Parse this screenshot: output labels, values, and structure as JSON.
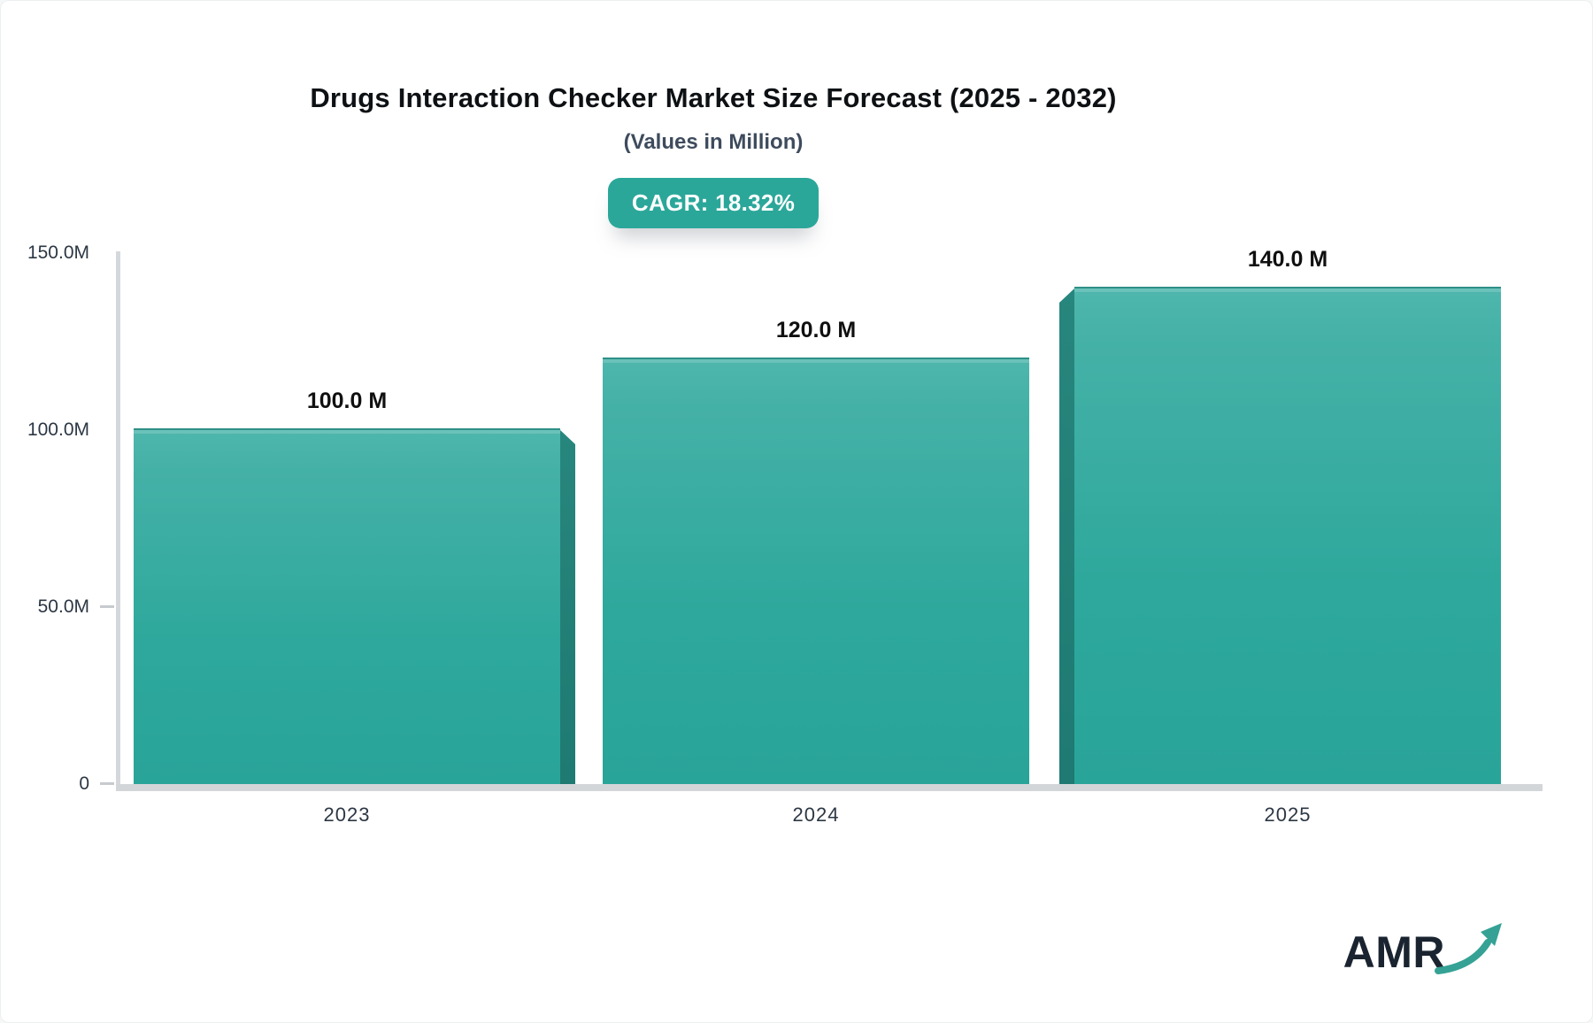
{
  "header": {
    "title": "Drugs Interaction Checker Market Size Forecast (2025 - 2032)",
    "subtitle": "(Values in Million)",
    "cagr_label": "CAGR: 18.32%"
  },
  "chart_data": {
    "type": "bar",
    "title": "Drugs Interaction Checker Market Size Forecast (2025 - 2032)",
    "subtitle": "(Values in Million)",
    "cagr_percent": 18.32,
    "unit": "Million",
    "categories": [
      "2023",
      "2024",
      "2025"
    ],
    "values": [
      100.0,
      120.0,
      140.0
    ],
    "value_labels": [
      "100.0 M",
      "120.0 M",
      "140.0 M"
    ],
    "ylim": [
      0,
      150
    ],
    "y_ticks": [
      {
        "value": 150,
        "label": "150.0M"
      },
      {
        "value": 100,
        "label": "100.0M"
      },
      {
        "value": 50,
        "label": "50.0M"
      },
      {
        "value": 0,
        "label": "0"
      }
    ],
    "grid": false,
    "legend": false,
    "bar_colors": {
      "top": "#4fb7ad",
      "bottom": "#29a499",
      "side_3d": "#1e7a72"
    }
  },
  "logo": {
    "text": "AMR"
  },
  "colors": {
    "accent_teal": "#2ba79a",
    "axis_line": "#d3d6d9",
    "tick_text": "#2c3744",
    "title_text": "#0e1114",
    "subtitle_text": "#3e4b5d"
  }
}
